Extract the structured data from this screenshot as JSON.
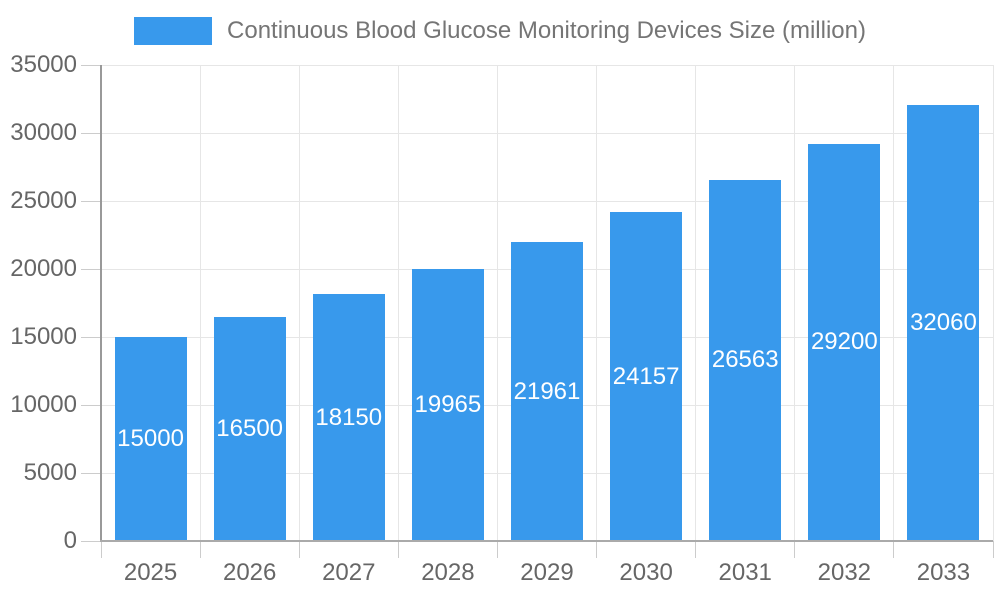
{
  "legend": {
    "label": "Continuous Blood Glucose Monitoring Devices Size (million)"
  },
  "chart_data": {
    "type": "bar",
    "title": "",
    "xlabel": "",
    "ylabel": "",
    "series_name": "Continuous Blood Glucose Monitoring Devices Size (million)",
    "categories": [
      "2025",
      "2026",
      "2027",
      "2028",
      "2029",
      "2030",
      "2031",
      "2032",
      "2033"
    ],
    "values": [
      15000,
      16500,
      18150,
      19965,
      21961,
      24157,
      26563,
      29200,
      32060
    ],
    "bar_labels": [
      "15000",
      "16500",
      "18150",
      "19965",
      "21961",
      "24157",
      "26563",
      "29200",
      "32060"
    ],
    "ylim": [
      0,
      35000
    ],
    "yticks": [
      0,
      5000,
      10000,
      15000,
      20000,
      25000,
      30000,
      35000
    ],
    "grid": true,
    "legend_position": "top",
    "colors": {
      "bar": "#3899EC",
      "bar_label": "#ffffff",
      "axis_label": "#666666",
      "legend_text": "#757575",
      "grid_line": "#e6e6e6",
      "axis_line": "#aaaaaa",
      "y_axis_line": "#999999",
      "tick_line": "#cccccc",
      "background": "#ffffff"
    }
  }
}
